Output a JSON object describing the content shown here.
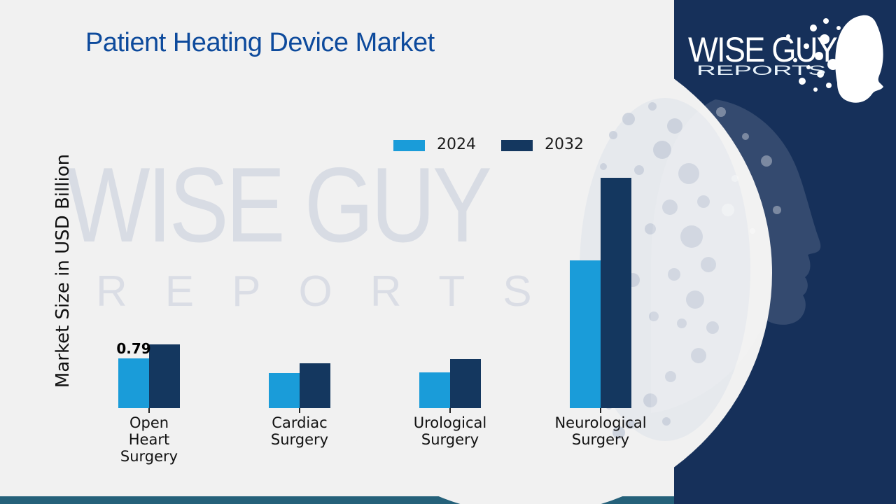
{
  "page": {
    "title": "Patient Heating Device Market"
  },
  "logo": {
    "line1": "WISE GUY",
    "line2": "REPORTS"
  },
  "watermark": {
    "line1": "WISE GUY",
    "line2": "REPORTS"
  },
  "colors": {
    "title_blue": "#0d4a9c",
    "series_2024_blue": "#1a9cd9",
    "series_2032_navy": "#14375f",
    "panel_navy": "#16305a",
    "footer_teal": "#25617a",
    "watermark_gray": "#d8dce4",
    "background": "#f1f1f1"
  },
  "chart_data": {
    "type": "bar",
    "title": "Patient Heating Device Market",
    "xlabel": "",
    "ylabel": "Market Size in USD Billion",
    "grid": false,
    "legend_position": "top-right",
    "categories": [
      "Open Heart Surgery",
      "Cardiac Surgery",
      "Urological Surgery",
      "Neurological Surgery"
    ],
    "category_lines": [
      [
        "Open",
        "Heart",
        "Surgery"
      ],
      [
        "Cardiac",
        "Surgery"
      ],
      [
        "Urological",
        "Surgery"
      ],
      [
        "Neurological",
        "Surgery"
      ]
    ],
    "series": [
      {
        "name": "2024",
        "color": "#1a9cd9",
        "values": [
          0.79,
          0.56,
          0.57,
          2.34
        ]
      },
      {
        "name": "2032",
        "color": "#14375f",
        "values": [
          1.01,
          0.71,
          0.78,
          3.66
        ]
      }
    ],
    "annotations": [
      {
        "category_index": 0,
        "series_index": 0,
        "text": "0.79"
      }
    ]
  }
}
